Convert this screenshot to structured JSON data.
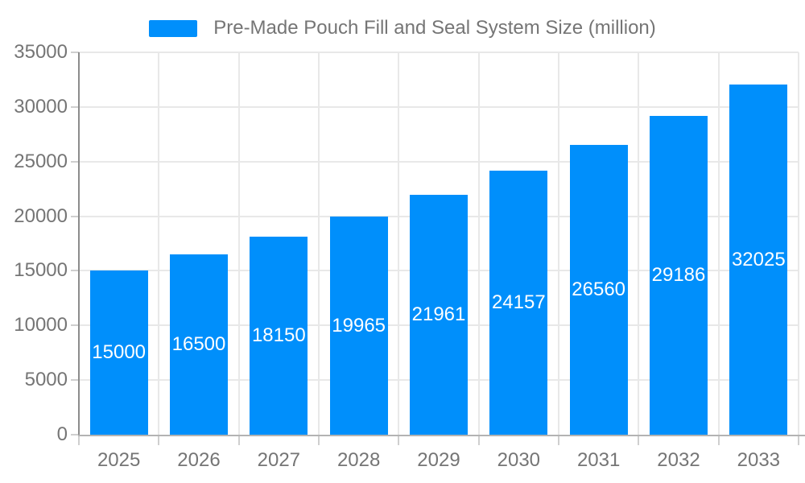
{
  "legend": {
    "label": "Pre-Made Pouch Fill and Seal System Size (million)"
  },
  "colors": {
    "bar": "#008ffb",
    "axis_label_text": "#757575",
    "value_label_text": "#ffffff",
    "gridline": "#e8e8e8",
    "y_axis_line": "#8c8c8c",
    "x_axis_line": "#b3b3b3",
    "tick": "#cfcfcf",
    "background": "#ffffff"
  },
  "chart_data": {
    "type": "bar",
    "title": "",
    "xlabel": "",
    "ylabel": "",
    "categories": [
      "2025",
      "2026",
      "2027",
      "2028",
      "2029",
      "2030",
      "2031",
      "2032",
      "2033"
    ],
    "series": [
      {
        "name": "Pre-Made Pouch Fill and Seal System Size (million)",
        "values": [
          15000,
          16500,
          18150,
          19965,
          21961,
          24157,
          26560,
          29186,
          32025
        ]
      }
    ],
    "value_labels_visible": true,
    "value_label_position": "inside-center",
    "ylim": [
      0,
      35000
    ],
    "y_ticks": [
      0,
      5000,
      10000,
      15000,
      20000,
      25000,
      30000,
      35000
    ],
    "grid": true,
    "legend_position": "top-center"
  }
}
